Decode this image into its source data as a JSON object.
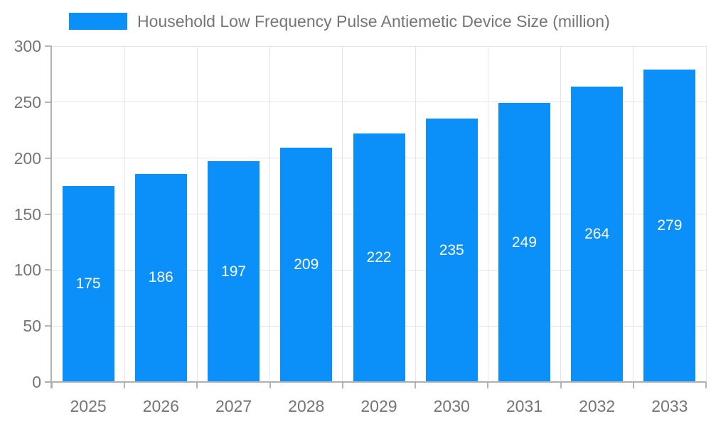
{
  "legend": {
    "label": "Household Low Frequency Pulse Antiemetic Device Size (million)"
  },
  "chart_data": {
    "type": "bar",
    "title": "Household Low Frequency Pulse Antiemetic Device Size (million)",
    "categories": [
      "2025",
      "2026",
      "2027",
      "2028",
      "2029",
      "2030",
      "2031",
      "2032",
      "2033"
    ],
    "values": [
      175,
      186,
      197,
      209,
      222,
      235,
      249,
      264,
      279
    ],
    "xlabel": "",
    "ylabel": "",
    "ylim": [
      0,
      300
    ],
    "y_ticks": [
      0,
      50,
      100,
      150,
      200,
      250,
      300
    ],
    "grid": true,
    "legend_position": "top-left",
    "bar_color": "#0b8ff8",
    "value_label_color": "#ffffff",
    "axis_label_color": "#757575",
    "gridline_color": "#e5e5e5",
    "axis_line_color": "#b0b0b0",
    "background_color": "#ffffff"
  }
}
